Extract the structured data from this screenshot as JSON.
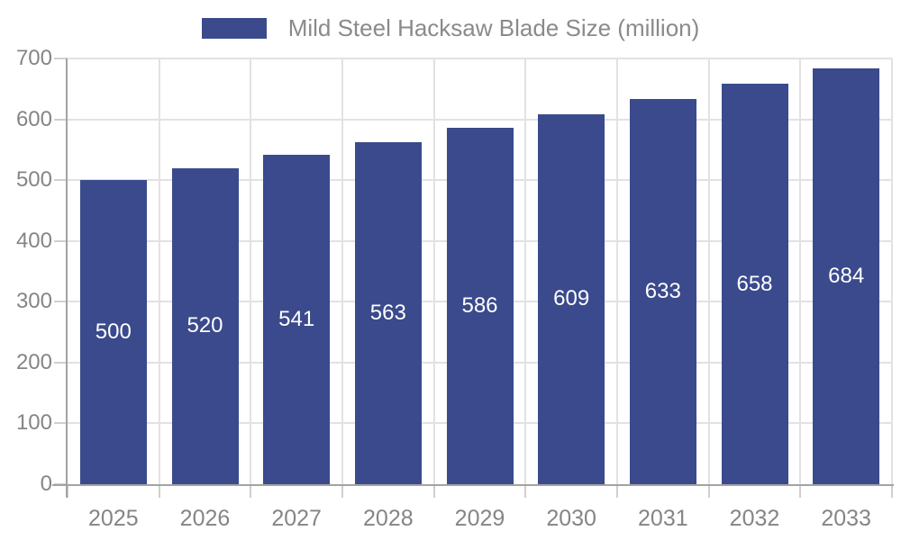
{
  "chart_data": {
    "type": "bar",
    "title": "Mild Steel Hacksaw Blade Size (million)",
    "categories": [
      "2025",
      "2026",
      "2027",
      "2028",
      "2029",
      "2030",
      "2031",
      "2032",
      "2033"
    ],
    "values": [
      500,
      520,
      541,
      563,
      586,
      609,
      633,
      658,
      684
    ],
    "xlabel": "",
    "ylabel": "",
    "ylim": [
      0,
      700
    ],
    "yticks": [
      0,
      100,
      200,
      300,
      400,
      500,
      600,
      700
    ],
    "grid": true,
    "legend_position": "top",
    "bar_labels_visible": true
  },
  "legend": {
    "items": [
      {
        "label": "Mild Steel Hacksaw Blade Size (million)",
        "color": "#3A4A8C"
      }
    ]
  },
  "colors": {
    "bar": "#3A4A8C",
    "bar_label": "#ffffff",
    "axis_text": "#858585",
    "legend_text": "#8a8a8a",
    "grid": "#e2e2e2",
    "axis": "#a3a3a3",
    "tick": "#cfcfcf",
    "background": "#ffffff"
  }
}
